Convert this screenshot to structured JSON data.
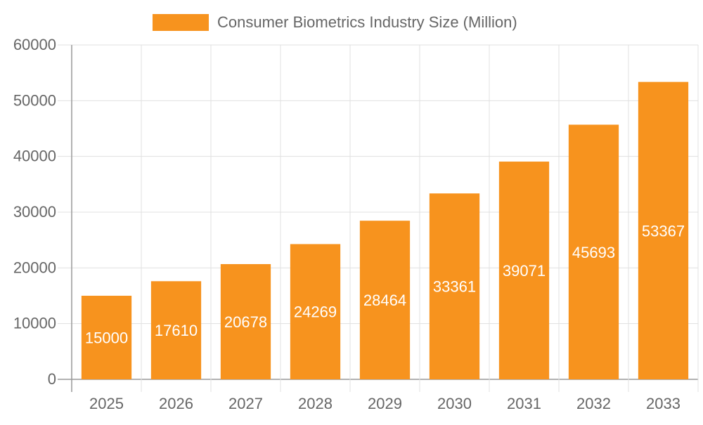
{
  "chart_data": {
    "type": "bar",
    "title": "",
    "xlabel": "",
    "ylabel": "",
    "categories": [
      "2025",
      "2026",
      "2027",
      "2028",
      "2029",
      "2030",
      "2031",
      "2032",
      "2033"
    ],
    "series": [
      {
        "name": "Consumer Biometrics Industry Size (Million)",
        "values": [
          15000,
          17610,
          20678,
          24269,
          28464,
          33361,
          39071,
          45693,
          53367
        ],
        "color": "#F7931E"
      }
    ],
    "ylim": [
      0,
      60000
    ],
    "yticks": [
      0,
      10000,
      20000,
      30000,
      40000,
      50000,
      60000
    ],
    "grid": true,
    "legend": "top",
    "data_labels": true
  }
}
